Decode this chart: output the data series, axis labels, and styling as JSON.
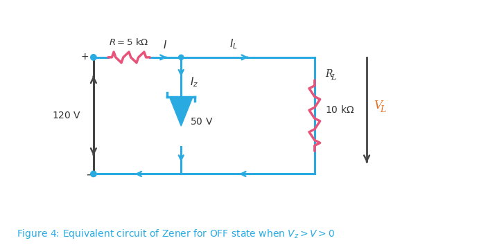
{
  "bg_color": "#ffffff",
  "wire_color": "#29ABE2",
  "resistor_color": "#E8537A",
  "dark_color": "#444444",
  "text_color": "#333333",
  "figure_caption_color": "#29ABE2",
  "figsize": [
    6.91,
    3.54
  ],
  "dpi": 100,
  "xlim": [
    0,
    10
  ],
  "ylim": [
    0,
    5
  ]
}
